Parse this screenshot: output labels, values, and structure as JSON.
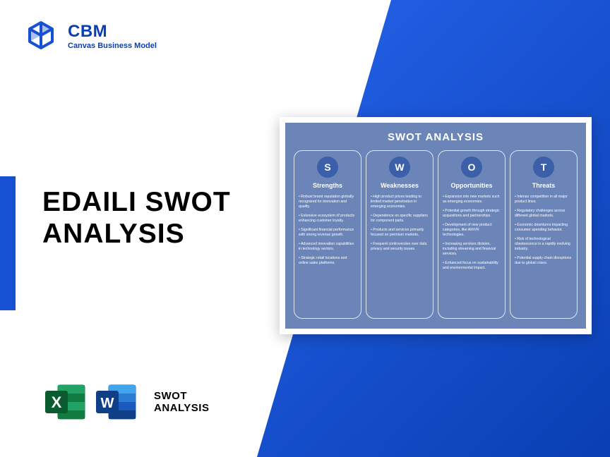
{
  "brand": {
    "name": "CBM",
    "tagline": "Canvas Business Model",
    "logo_color": "#1651d4"
  },
  "title": {
    "line1": "EDAILI SWOT",
    "line2": "ANALYSIS"
  },
  "format": {
    "line1": "SWOT",
    "line2": "ANALYSIS",
    "excel_color": "#107c41",
    "excel_dark": "#0a5c30",
    "word_color": "#185abd",
    "word_dark": "#103f88"
  },
  "preview": {
    "title": "SWOT ANALYSIS",
    "bg": "#6b85b8",
    "badge_bg": "#3b5fa8",
    "columns": [
      {
        "letter": "S",
        "heading": "Strengths",
        "items": [
          "Robust brand reputation globally recognized for innovation and quality.",
          "Extensive ecosystem of products enhancing customer loyalty.",
          "Significant financial performance with strong revenue growth.",
          "Advanced innovation capabilities in technology sectors.",
          "Strategic retail locations and online sales platforms."
        ]
      },
      {
        "letter": "W",
        "heading": "Weaknesses",
        "items": [
          "High product prices leading to limited market penetration in emerging economies.",
          "Dependence on specific suppliers for component parts.",
          "Products and services primarily focused on premium markets.",
          "Frequent controversies over data privacy and security issues."
        ]
      },
      {
        "letter": "O",
        "heading": "Opportunities",
        "items": [
          "Expansion into new markets such as emerging economies.",
          "Potential growth through strategic acquisitions and partnerships.",
          "Development of new product categories, like AR/VR technologies.",
          "Increasing services division, including streaming and financial services.",
          "Enhanced focus on sustainability and environmental impact."
        ]
      },
      {
        "letter": "T",
        "heading": "Threats",
        "items": [
          "Intense competition in all major product lines.",
          "Regulatory challenges across different global markets.",
          "Economic downturns impacting consumer spending behavior.",
          "Risk of technological obsolescence in a rapidly evolving industry.",
          "Potential supply chain disruptions due to global crises."
        ]
      }
    ]
  },
  "colors": {
    "diagonal_start": "#2563eb",
    "diagonal_end": "#0a3fb3",
    "accent": "#1651d4"
  }
}
